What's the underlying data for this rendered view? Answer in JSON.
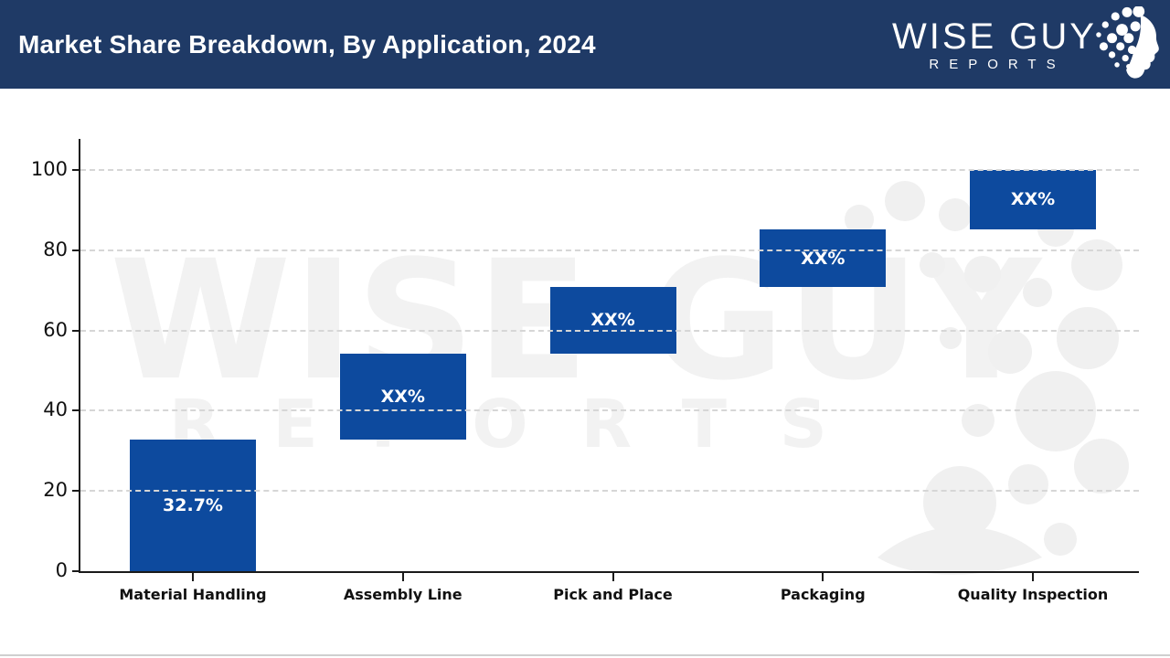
{
  "header": {
    "title": "Market Share Breakdown, By Application, 2024",
    "background_color": "#1f3a66"
  },
  "logo": {
    "line1": "WISE GUY",
    "line2": "REPORTS"
  },
  "watermark": {
    "line1": "WISE GUY",
    "line2": "REPORTS"
  },
  "chart_data": {
    "type": "bar",
    "subtype": "waterfall",
    "title": "Market Share Breakdown, By Application, 2024",
    "categories": [
      "Material Handling",
      "Assembly Line",
      "Pick and Place",
      "Packaging",
      "Quality Inspection"
    ],
    "segments": [
      {
        "category": "Material Handling",
        "start": 0,
        "end": 32.7,
        "label": "32.7%"
      },
      {
        "category": "Assembly Line",
        "start": 32.7,
        "end": 54.3,
        "label": "XX%"
      },
      {
        "category": "Pick and Place",
        "start": 54.3,
        "end": 70.8,
        "label": "XX%"
      },
      {
        "category": "Packaging",
        "start": 70.8,
        "end": 85.2,
        "label": "XX%"
      },
      {
        "category": "Quality Inspection",
        "start": 85.2,
        "end": 100,
        "label": "XX%"
      }
    ],
    "xlabel": "",
    "ylabel": "",
    "ylim": [
      0,
      100
    ],
    "yticks": [
      0,
      20,
      40,
      60,
      80,
      100
    ],
    "grid": {
      "horizontal": true,
      "style": "dashed",
      "color": "#d6d6d6",
      "drawn_over_bars": true
    },
    "bar_color": "#0d4a9e",
    "bar_label_color": "#ffffff",
    "axis_color": "#1a1a1a",
    "legend": "none"
  }
}
